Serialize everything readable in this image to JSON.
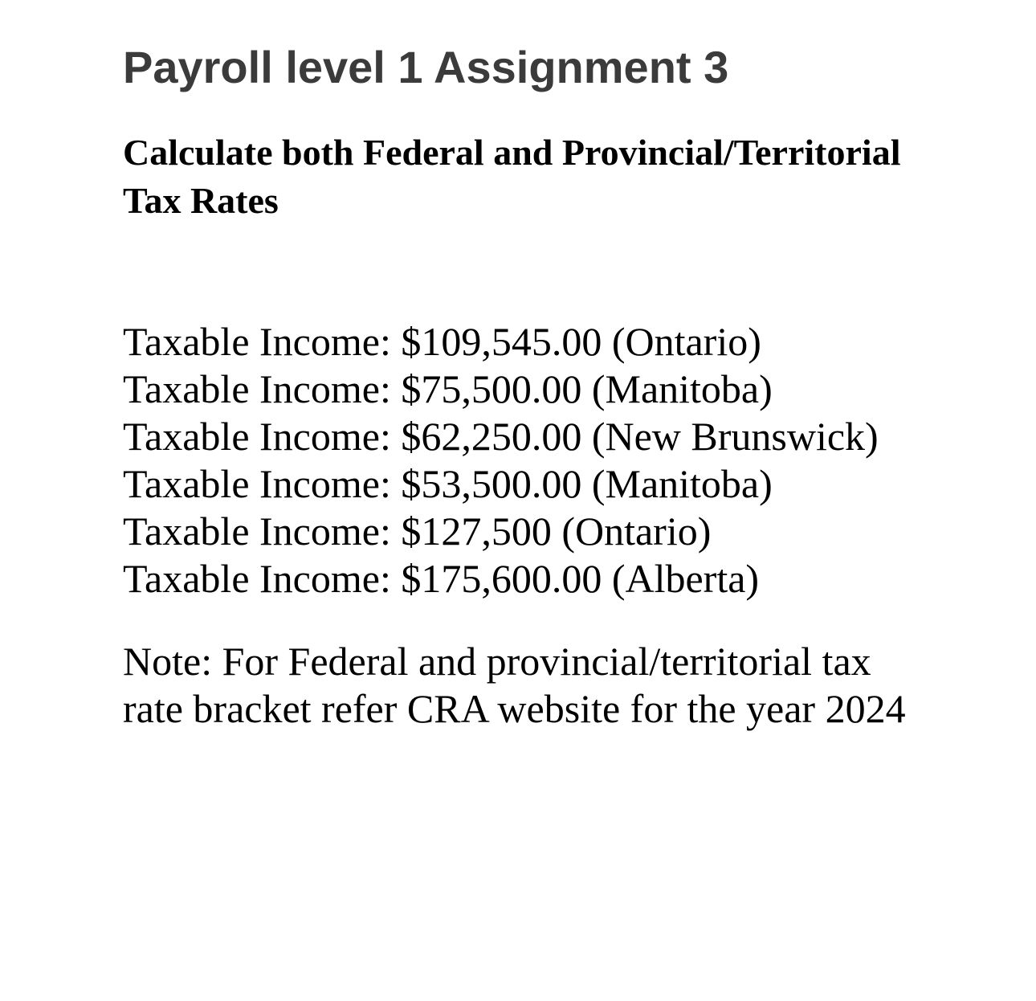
{
  "document": {
    "title": "Payroll level 1 Assignment 3",
    "subtitle": {
      "line1": "Calculate both Federal and Provincial/Territorial",
      "line2": "Tax Rates"
    },
    "taxable_incomes": [
      {
        "text": "Taxable Income: $109,545.00 (Ontario)",
        "amount": "$109,545.00",
        "province": "Ontario"
      },
      {
        "text": "Taxable Income: $75,500.00 (Manitoba)",
        "amount": "$75,500.00",
        "province": "Manitoba"
      },
      {
        "text": "Taxable Income: $62,250.00 (New Brunswick)",
        "amount": "$62,250.00",
        "province": "New Brunswick"
      },
      {
        "text": "Taxable Income: $53,500.00 (Manitoba)",
        "amount": "$53,500.00",
        "province": "Manitoba"
      },
      {
        "text": "Taxable Income: $127,500 (Ontario)",
        "amount": "$127,500",
        "province": "Ontario"
      },
      {
        "text": "Taxable Income: $175,600.00 (Alberta)",
        "amount": "$175,600.00",
        "province": "Alberta"
      }
    ],
    "note": {
      "line1": "Note: For Federal and provincial/territorial tax",
      "line2": "rate bracket refer CRA website for the year 2024"
    }
  },
  "colors": {
    "background": "#ffffff",
    "title": "#3b3b3b",
    "body_text": "#000000"
  }
}
